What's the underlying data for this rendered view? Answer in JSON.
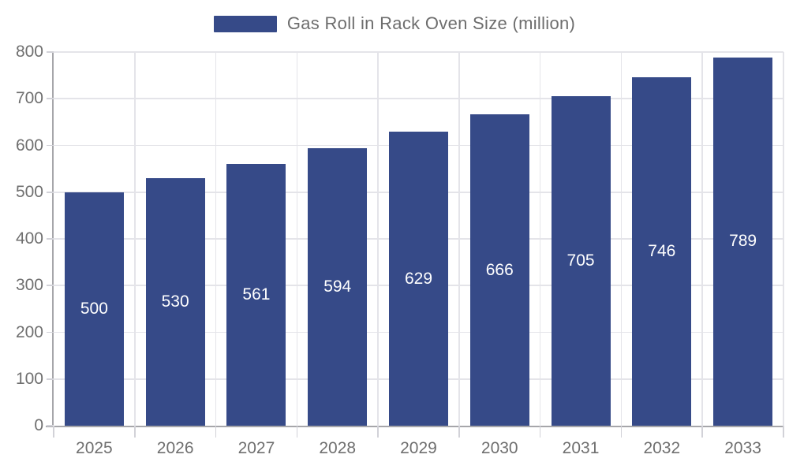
{
  "chart_data": {
    "type": "bar",
    "title": "Gas Roll in Rack Oven Size (million)",
    "categories": [
      "2025",
      "2026",
      "2027",
      "2028",
      "2029",
      "2030",
      "2031",
      "2032",
      "2033"
    ],
    "series": [
      {
        "name": "Gas Roll in Rack Oven Size (million)",
        "values": [
          500,
          530,
          561,
          594,
          629,
          666,
          705,
          746,
          789
        ]
      }
    ],
    "values": [
      500,
      530,
      561,
      594,
      629,
      666,
      705,
      746,
      789
    ],
    "value_labels_shown": true,
    "xlabel": "",
    "ylabel": "",
    "ylim": [
      0,
      800
    ],
    "ytick_step": 100,
    "y_ticks": [
      "0",
      "100",
      "200",
      "300",
      "400",
      "500",
      "600",
      "700",
      "800"
    ],
    "grid": true,
    "legend_position": "top-center",
    "colors": {
      "bar": "#364a88",
      "value_label": "#ffffff",
      "axis_label": "#6f6f6f",
      "legend_text": "#6d6d6d",
      "grid_line": "#e4e4e9",
      "axis_line": "#a6a6aa",
      "tick": "#d2d2d8",
      "background": "#ffffff"
    }
  }
}
